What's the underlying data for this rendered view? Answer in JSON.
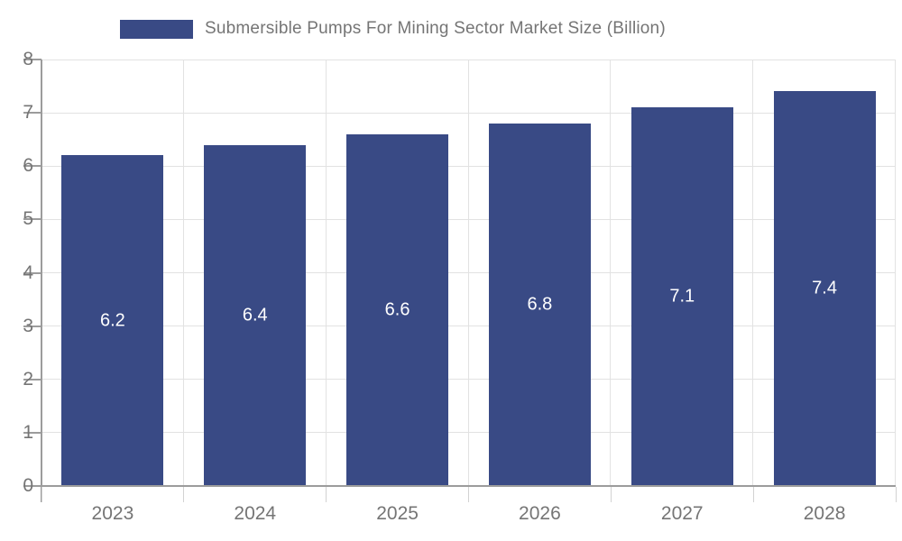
{
  "legend": {
    "label": "Submersible Pumps For Mining Sector Market Size (Billion)"
  },
  "colors": {
    "bar": "#394a85",
    "axis_line": "#9c9c9c",
    "gridline": "#e2e2e2",
    "minor_tick": "#d2d2d2",
    "axis_label": "#757575",
    "bar_label": "#ffffff",
    "background": "#ffffff"
  },
  "chart_data": {
    "type": "bar",
    "title": "Submersible Pumps For Mining Sector Market Size (Billion)",
    "categories": [
      "2023",
      "2024",
      "2025",
      "2026",
      "2027",
      "2028"
    ],
    "values": [
      6.2,
      6.4,
      6.6,
      6.8,
      7.1,
      7.4
    ],
    "bar_labels": [
      "6.2",
      "6.4",
      "6.6",
      "6.8",
      "7.1",
      "7.4"
    ],
    "series": [
      {
        "name": "Submersible Pumps For Mining Sector Market Size (Billion)",
        "values": [
          6.2,
          6.4,
          6.6,
          6.8,
          7.1,
          7.4
        ]
      }
    ],
    "xlabel": "",
    "ylabel": "",
    "ylim": [
      0,
      8
    ],
    "yticks": [
      0,
      1,
      2,
      3,
      4,
      5,
      6,
      7,
      8
    ],
    "grid": true,
    "legend_position": "top-center",
    "bar_label_position": "inside-center"
  }
}
